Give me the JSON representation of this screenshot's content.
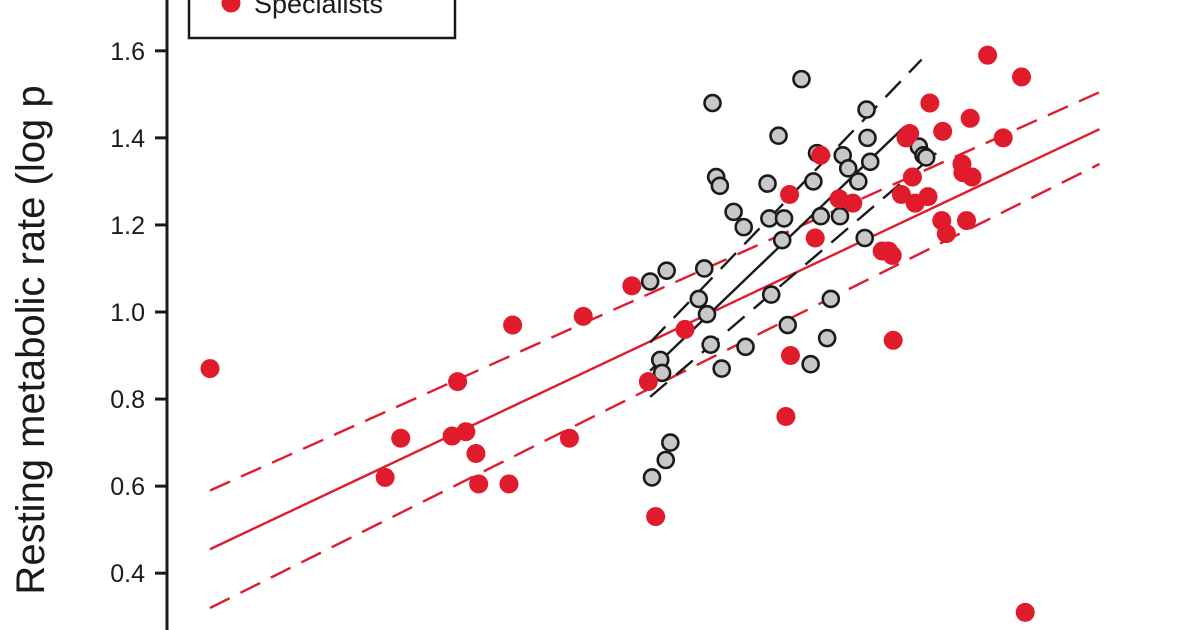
{
  "chart_data": {
    "type": "scatter",
    "ylabel": "Resting metabolic rate (log p",
    "ylim": [
      0.32,
      1.68
    ],
    "yticks": [
      0.4,
      0.6,
      0.8,
      1.0,
      1.2,
      1.4,
      1.6
    ],
    "ytick_labels": [
      "0.4",
      "0.6",
      "0.8",
      "1.0",
      "1.2",
      "1.4",
      "1.6"
    ],
    "x_extent": [
      0,
      100
    ],
    "grid": false,
    "legend": {
      "placement": "top-left",
      "entries": [
        {
          "label": "Specialists",
          "series": "specialists"
        }
      ]
    },
    "colors": {
      "specialists": "#e01b2c",
      "generalists_fill": "#c8c8c8",
      "generalists_edge": "#1a1a1a",
      "generalists_line": "#1a1a1a",
      "axis": "#1a1a1a"
    },
    "series": [
      {
        "key": "specialists",
        "points": [
          [
            0,
            0.87
          ],
          [
            19.1,
            0.62
          ],
          [
            20.8,
            0.71
          ],
          [
            26.4,
            0.715
          ],
          [
            27.0,
            0.84
          ],
          [
            27.9,
            0.725
          ],
          [
            29.0,
            0.675
          ],
          [
            29.3,
            0.605
          ],
          [
            32.6,
            0.605
          ],
          [
            33.0,
            0.97
          ],
          [
            39.2,
            0.71
          ],
          [
            40.7,
            0.99
          ],
          [
            46.0,
            1.06
          ],
          [
            47.8,
            0.84
          ],
          [
            48.6,
            0.53
          ],
          [
            51.8,
            0.96
          ],
          [
            62.8,
            0.76
          ],
          [
            63.2,
            1.27
          ],
          [
            63.3,
            0.9
          ],
          [
            66.0,
            1.17
          ],
          [
            66.6,
            1.36
          ],
          [
            68.6,
            1.26
          ],
          [
            70.1,
            1.25
          ],
          [
            73.3,
            1.14
          ],
          [
            74.0,
            1.14
          ],
          [
            74.4,
            1.13
          ],
          [
            74.5,
            0.935
          ],
          [
            75.4,
            1.27
          ],
          [
            75.9,
            1.4
          ],
          [
            76.3,
            1.41
          ],
          [
            76.6,
            1.31
          ],
          [
            76.9,
            1.25
          ],
          [
            78.3,
            1.265
          ],
          [
            78.5,
            1.48
          ],
          [
            79.8,
            1.21
          ],
          [
            79.9,
            1.415
          ],
          [
            80.3,
            1.18
          ],
          [
            82.0,
            1.34
          ],
          [
            82.1,
            1.32
          ],
          [
            82.5,
            1.21
          ],
          [
            82.9,
            1.445
          ],
          [
            83.1,
            1.31
          ],
          [
            84.8,
            1.59
          ],
          [
            86.5,
            1.4
          ],
          [
            88.5,
            1.54
          ],
          [
            88.9,
            0.31
          ]
        ],
        "fit": {
          "x": [
            0,
            97
          ],
          "y": [
            0.455,
            1.42
          ]
        },
        "ci_upper": {
          "x": [
            0,
            97
          ],
          "y": [
            0.59,
            1.505
          ]
        },
        "ci_lower": {
          "x": [
            0,
            97
          ],
          "y": [
            0.32,
            1.34
          ]
        }
      },
      {
        "key": "generalists",
        "points": [
          [
            48.0,
            1.07
          ],
          [
            48.2,
            0.62
          ],
          [
            49.1,
            0.89
          ],
          [
            49.3,
            0.86
          ],
          [
            49.7,
            0.66
          ],
          [
            49.8,
            1.095
          ],
          [
            50.2,
            0.7
          ],
          [
            53.3,
            1.03
          ],
          [
            53.9,
            1.1
          ],
          [
            54.2,
            0.995
          ],
          [
            54.6,
            0.925
          ],
          [
            54.8,
            1.48
          ],
          [
            55.2,
            1.31
          ],
          [
            55.6,
            1.29
          ],
          [
            55.8,
            0.87
          ],
          [
            57.1,
            1.23
          ],
          [
            58.2,
            1.195
          ],
          [
            58.4,
            0.92
          ],
          [
            60.8,
            1.295
          ],
          [
            61.0,
            1.215
          ],
          [
            61.2,
            1.04
          ],
          [
            62.0,
            1.405
          ],
          [
            62.4,
            1.165
          ],
          [
            62.6,
            1.215
          ],
          [
            63.0,
            0.97
          ],
          [
            64.5,
            1.535
          ],
          [
            65.5,
            0.88
          ],
          [
            65.8,
            1.3
          ],
          [
            66.2,
            1.365
          ],
          [
            66.6,
            1.22
          ],
          [
            67.3,
            0.94
          ],
          [
            67.7,
            1.03
          ],
          [
            68.7,
            1.22
          ],
          [
            69.0,
            1.36
          ],
          [
            69.6,
            1.33
          ],
          [
            70.7,
            1.3
          ],
          [
            71.4,
            1.17
          ],
          [
            71.6,
            1.465
          ],
          [
            71.7,
            1.4
          ],
          [
            72.0,
            1.345
          ],
          [
            77.3,
            1.38
          ],
          [
            77.8,
            1.36
          ],
          [
            78.1,
            1.355
          ]
        ],
        "fit": {
          "x": [
            48,
            75.7
          ],
          "y": [
            0.865,
            1.425
          ]
        },
        "ci_upper": {
          "x": [
            48,
            77.6
          ],
          "y": [
            0.93,
            1.58
          ]
        },
        "ci_lower": {
          "x": [
            48,
            79.2
          ],
          "y": [
            0.805,
            1.365
          ]
        }
      }
    ]
  }
}
